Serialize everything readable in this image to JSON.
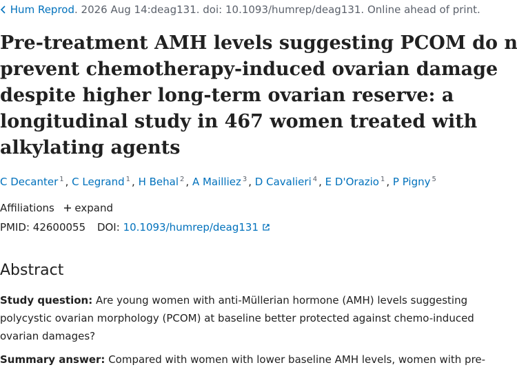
{
  "citation": {
    "journal": "Hum Reprod",
    "details": ". 2026 Aug 14:deag131. doi: 10.1093/humrep/deag131. Online ahead of print."
  },
  "title_lines": [
    "Pre-treatment AMH levels suggesting PCOM do not",
    "prevent chemotherapy-induced ovarian damage",
    "despite higher long-term ovarian reserve: a",
    "longitudinal study in 467 women treated with",
    "alkylating agents"
  ],
  "authors": [
    {
      "name": "C Decanter",
      "affiliation": "1"
    },
    {
      "name": "C Legrand",
      "affiliation": "1"
    },
    {
      "name": "H Behal",
      "affiliation": "2"
    },
    {
      "name": "A Mailliez",
      "affiliation": "3"
    },
    {
      "name": "D Cavalieri",
      "affiliation": "4"
    },
    {
      "name": "E D'Orazio",
      "affiliation": "1"
    },
    {
      "name": "P Pigny",
      "affiliation": "5"
    }
  ],
  "author_separator": ", ",
  "affiliations": {
    "label": "Affiliations",
    "toggle": "expand"
  },
  "ids": {
    "pmid_label": "PMID:",
    "pmid": "42600055",
    "doi_label": "DOI:",
    "doi": "10.1093/humrep/deag131"
  },
  "abstract": {
    "heading": "Abstract",
    "sections": [
      {
        "label": "Study question:",
        "text": " Are young women with anti-Müllerian hormone (AMH) levels suggesting polycystic ovarian morphology (PCOM) at baseline better protected against chemo-induced ovarian damages?"
      },
      {
        "label": "Summary answer:",
        "text": " Compared with women with lower baseline AMH levels, women with pre-"
      }
    ]
  }
}
